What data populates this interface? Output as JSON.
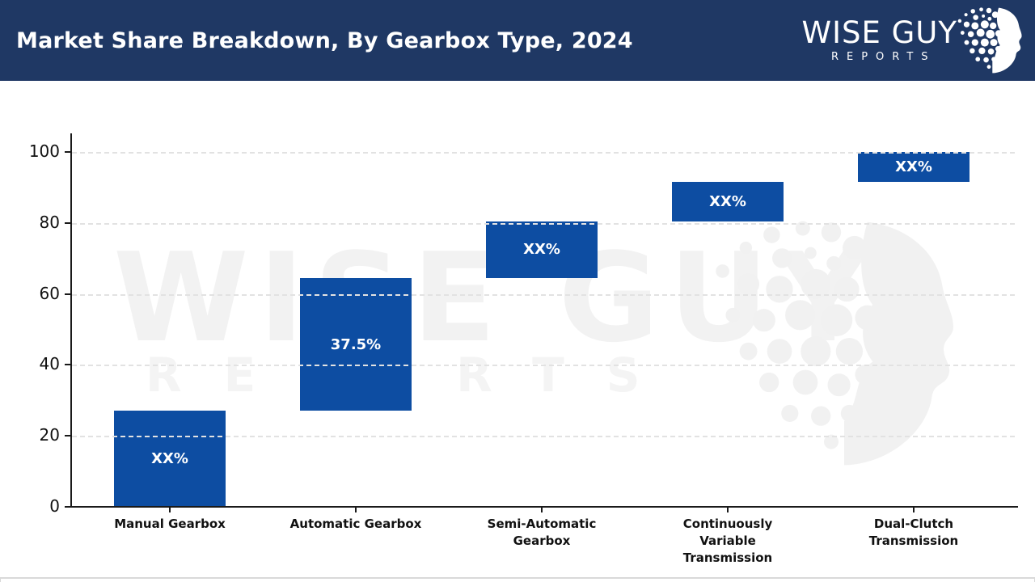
{
  "header": {
    "title": "Market Share Breakdown, By Gearbox Type, 2024",
    "bg_color": "#1f3864",
    "logo": {
      "line1": "WISE GUY",
      "line2": "REPORTS"
    }
  },
  "watermark": {
    "line1": "WISE GUY",
    "line2": "REPORTS"
  },
  "chart_data": {
    "type": "bar",
    "subtype": "waterfall",
    "title": "Market Share Breakdown, By Gearbox Type, 2024",
    "categories": [
      "Manual Gearbox",
      "Automatic Gearbox",
      "Semi-Automatic\nGearbox",
      "Continuously\nVariable\nTransmission",
      "Dual-Clutch\nTransmission"
    ],
    "segments": [
      {
        "label": "XX%",
        "start": 0,
        "end": 27
      },
      {
        "label": "37.5%",
        "start": 27,
        "end": 64.5
      },
      {
        "label": "XX%",
        "start": 64.5,
        "end": 80.5
      },
      {
        "label": "XX%",
        "start": 80.5,
        "end": 91.5
      },
      {
        "label": "XX%",
        "start": 91.5,
        "end": 100
      }
    ],
    "yticks": [
      0,
      20,
      40,
      60,
      80,
      100
    ],
    "ylim": [
      0,
      105
    ],
    "xlabel": "",
    "ylabel": "",
    "grid": true,
    "grid_style": "dashed",
    "legend": "none",
    "bar_color": "#0d4da2",
    "grid_color": "#e2e2e2",
    "axis_color": "#1a1a1a"
  },
  "colors": {
    "header_bg": "#1f3864",
    "page_bg": "#ffffff",
    "figure_border": "#d9d9d9",
    "watermark": "#f2f2f2"
  }
}
